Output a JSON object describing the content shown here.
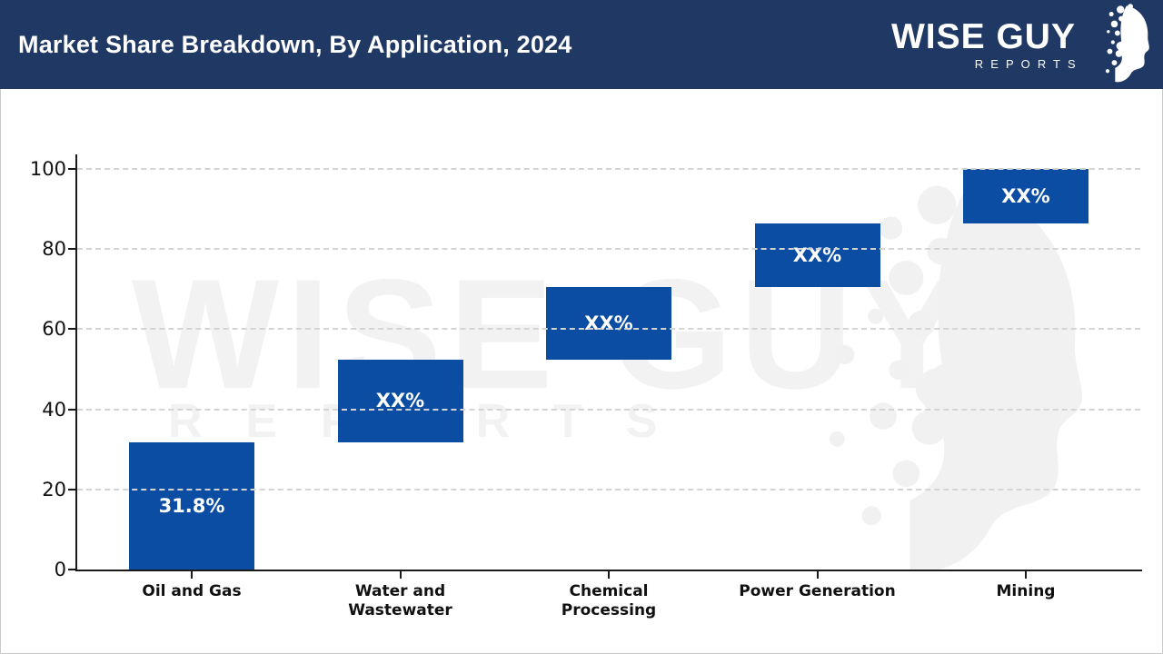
{
  "header": {
    "title": "Market Share Breakdown, By Application, 2024",
    "bg_color": "#1f3864",
    "logo": {
      "line1": "WISE GUY",
      "line2": "REPORTS"
    }
  },
  "watermark": {
    "line1": "WISE GUY",
    "line2": "REPORTS"
  },
  "chart_data": {
    "type": "bar",
    "subtype": "waterfall",
    "title": "Market Share Breakdown, By Application, 2024",
    "xlabel": "",
    "ylabel": "",
    "ylim": [
      0,
      103.6
    ],
    "yticks": [
      0,
      20,
      40,
      60,
      80,
      100
    ],
    "grid": "horizontal dashed",
    "bar_color": "#0b4da2",
    "label_color": "#ffffff",
    "categories": [
      "Oil and Gas",
      "Water and Wastewater",
      "Chemical Processing",
      "Power Generation",
      "Mining"
    ],
    "category_lines": [
      [
        "Oil and Gas"
      ],
      [
        "Water and",
        "Wastewater"
      ],
      [
        "Chemical",
        "Processing"
      ],
      [
        "Power Generation"
      ],
      [
        "Mining"
      ]
    ],
    "segments": [
      {
        "category": "Oil and Gas",
        "start": 0.0,
        "end": 31.8,
        "label": "31.8%"
      },
      {
        "category": "Water and Wastewater",
        "start": 31.8,
        "end": 52.4,
        "label": "XX%"
      },
      {
        "category": "Chemical Processing",
        "start": 52.4,
        "end": 70.5,
        "label": "XX%"
      },
      {
        "category": "Power Generation",
        "start": 70.5,
        "end": 86.3,
        "label": "XX%"
      },
      {
        "category": "Mining",
        "start": 86.3,
        "end": 100.0,
        "label": "XX%"
      }
    ]
  }
}
